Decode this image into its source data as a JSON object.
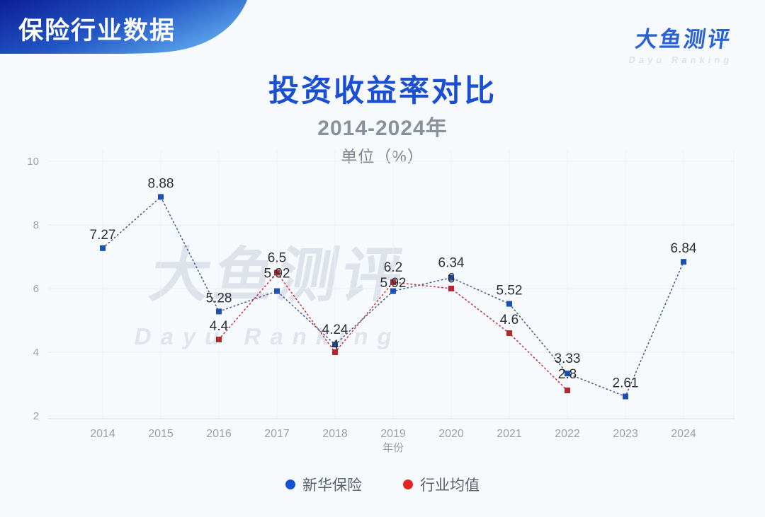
{
  "page": {
    "background": "#f7fafd"
  },
  "banner": {
    "label": "保险行业数据"
  },
  "brand": {
    "name": "大鱼测评",
    "subtitle": "Dayu Ranking"
  },
  "header": {
    "title": "投资收益率对比",
    "subtitle": "2014-2024年",
    "unit_label": "单位（%）"
  },
  "watermark": {
    "text": "大鱼测评",
    "subtext": "Dayu Ranking"
  },
  "chart_data": {
    "type": "line",
    "title": "投资收益率对比",
    "subtitle": "2014-2024年",
    "unit": "%",
    "xlabel": "年份",
    "categories": [
      "2014",
      "2015",
      "2016",
      "2017",
      "2018",
      "2019",
      "2020",
      "2021",
      "2022",
      "2023",
      "2024"
    ],
    "series": [
      {
        "name": "新华保险",
        "marker_color": "#1d50b5",
        "line_color": "#4a5f94",
        "values": [
          7.27,
          8.88,
          5.28,
          5.92,
          4.24,
          5.92,
          6.34,
          5.52,
          3.33,
          2.61,
          6.84
        ]
      },
      {
        "name": "行业均值",
        "marker_color": "#b3282e",
        "line_color": "#ca3a43",
        "values": [
          null,
          null,
          4.4,
          6.5,
          4,
          6.2,
          6,
          4.6,
          2.8,
          null,
          null
        ]
      }
    ],
    "ylim": [
      2,
      10
    ],
    "yticks": [
      2,
      4,
      6,
      8,
      10
    ],
    "grid": true,
    "line_style": "dotted",
    "marker_shape": "square",
    "label_color": "#2d2f33",
    "tick_color": "#9aa1ab",
    "legend_position": "bottom"
  },
  "legend": {
    "items": [
      {
        "label": "新华保险",
        "color": "#1552d0"
      },
      {
        "label": "行业均值",
        "color": "#e12626"
      }
    ]
  }
}
